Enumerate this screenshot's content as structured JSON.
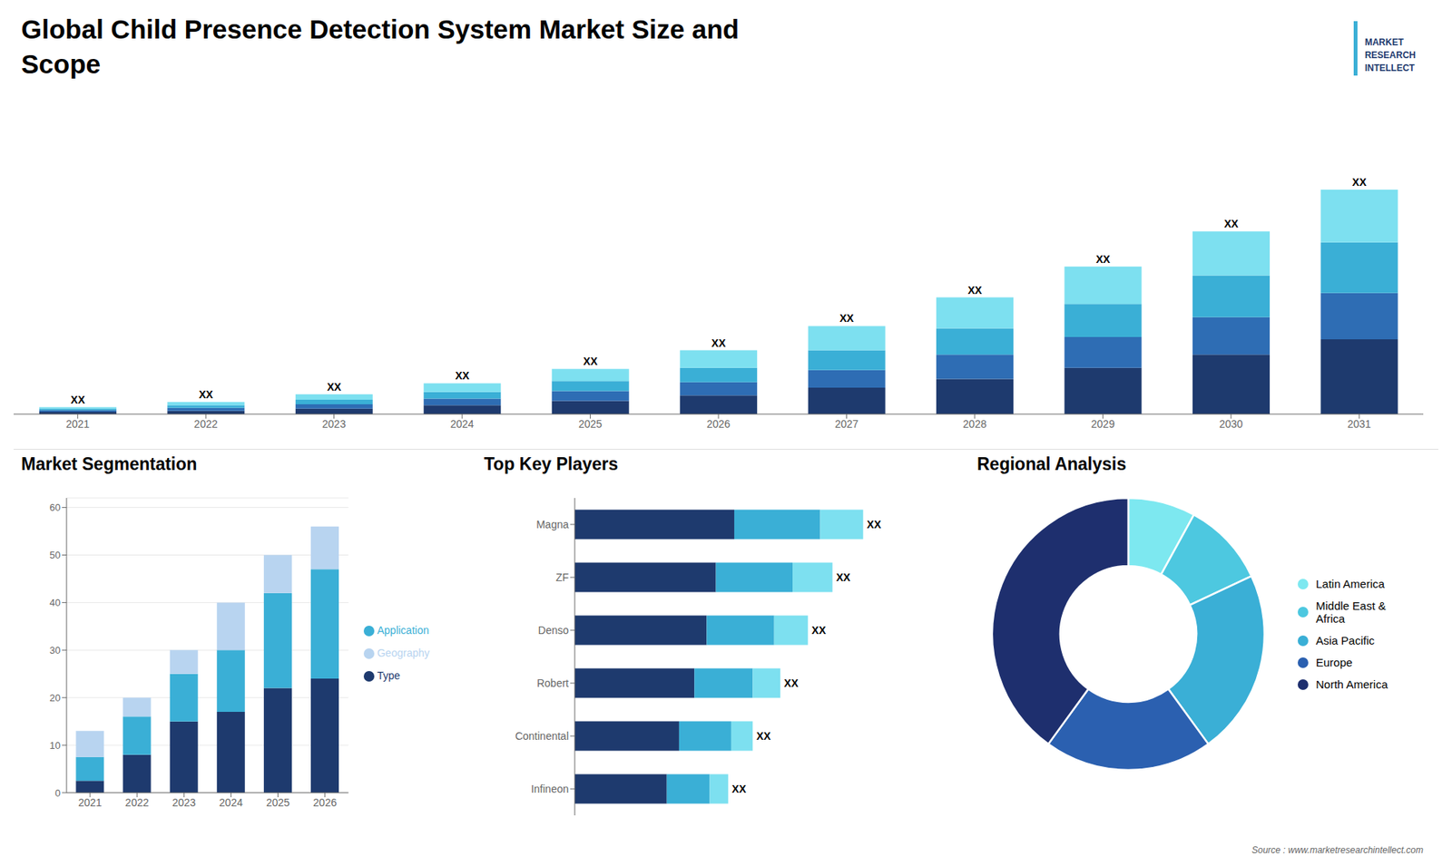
{
  "title": "Global Child Presence Detection System Market Size and\nScope",
  "annotations": [
    "MARKET",
    "RESEARCH",
    "INTELLECT",
    "Source : www.marketresearchintellect.com"
  ],
  "chart_data": [
    {
      "type": "bar",
      "stacked": true,
      "categories": [
        "2021",
        "2022",
        "2023",
        "2024",
        "2025",
        "2026",
        "2027",
        "2028",
        "2029",
        "2030",
        "2031"
      ],
      "series": [
        {
          "color": "#1e3a6e",
          "values": [
            1.0,
            1.5,
            2.5,
            4.0,
            6.0,
            8.5,
            12.0,
            16.0,
            21.0,
            27.0,
            34.0
          ]
        },
        {
          "color": "#2e6db4",
          "values": [
            0.8,
            1.3,
            2.0,
            3.0,
            4.5,
            6.0,
            8.0,
            11.0,
            14.0,
            17.0,
            21.0
          ]
        },
        {
          "color": "#3aafd6",
          "values": [
            0.7,
            1.2,
            2.0,
            3.0,
            4.5,
            6.5,
            9.0,
            12.0,
            15.0,
            19.0,
            23.0
          ]
        },
        {
          "color": "#7de0f0",
          "values": [
            0.7,
            1.5,
            2.5,
            4.0,
            5.5,
            8.0,
            11.0,
            14.0,
            17.0,
            20.0,
            24.0
          ],
          "value_labels": [
            "XX",
            "XX",
            "XX",
            "XX",
            "XX",
            "XX",
            "XX",
            "XX",
            "XX",
            "XX",
            "XX"
          ]
        }
      ],
      "ylim": [
        0,
        140.76
      ],
      "tick_labels": "x"
    },
    {
      "type": "bar",
      "title": "Market Segmentation",
      "stacked": true,
      "categories": [
        "2021",
        "2022",
        "2023",
        "2024",
        "2025",
        "2026"
      ],
      "series": [
        {
          "name": "Type",
          "color": "#1e3a6e",
          "values": [
            2.5,
            8.0,
            15.0,
            17.0,
            22.0,
            24.0
          ]
        },
        {
          "name": "Application",
          "color": "#3aafd6",
          "values": [
            5.0,
            8.0,
            10.0,
            13.0,
            20.0,
            23.0
          ]
        },
        {
          "name": "Geography",
          "color": "#b8d4f0",
          "values": [
            5.5,
            4.0,
            5.0,
            10.0,
            8.0,
            9.0
          ]
        }
      ],
      "ylim": [
        0,
        62
      ],
      "yticks": [
        0,
        10,
        20,
        30,
        40,
        50,
        60
      ],
      "grid": true,
      "legend": "right"
    },
    {
      "type": "bar",
      "title": "Top Key Players",
      "orientation": "horizontal",
      "stacked": true,
      "categories": [
        "Magna",
        "ZF",
        "Denso",
        "Robert",
        "Continental",
        "Infineon"
      ],
      "series": [
        {
          "color": "#1e3a6e",
          "values": [
            5.2,
            4.6,
            4.3,
            3.9,
            3.4,
            3.0
          ]
        },
        {
          "color": "#3aafd6",
          "values": [
            2.8,
            2.5,
            2.2,
            1.9,
            1.7,
            1.4
          ]
        },
        {
          "color": "#7de0f0",
          "values": [
            1.4,
            1.3,
            1.1,
            0.9,
            0.7,
            0.6
          ],
          "value_labels": [
            "XX",
            "XX",
            "XX",
            "XX",
            "XX",
            "XX"
          ]
        }
      ],
      "xlim": [
        0,
        11.092
      ],
      "tick_labels": "y"
    },
    {
      "type": "pie",
      "title": "Regional Analysis",
      "categories": [
        "Latin America",
        "Middle East &\nAfrica",
        "Asia Pacific",
        "Europe",
        "North America"
      ],
      "values": [
        8,
        10,
        22,
        20,
        40
      ],
      "colors": [
        "#7de8f0",
        "#4dc8e0",
        "#3aafd6",
        "#2b60b0",
        "#1e2f6e"
      ],
      "legend": "right"
    }
  ]
}
